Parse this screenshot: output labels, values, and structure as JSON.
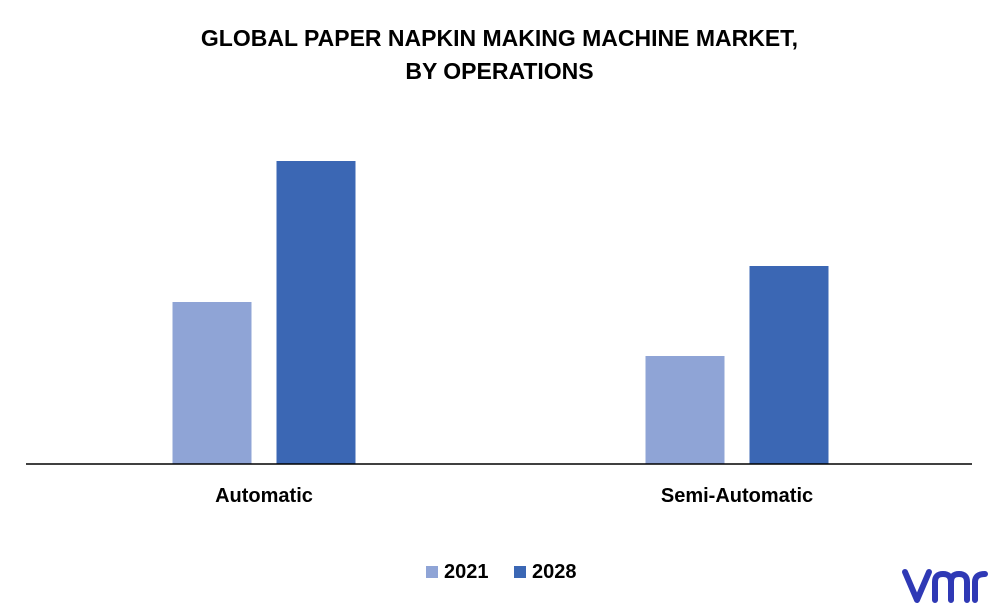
{
  "chart_data": {
    "type": "bar",
    "title_lines": [
      "GLOBAL PAPER NAPKIN MAKING MACHINE MARKET,",
      "BY OPERATIONS"
    ],
    "categories": [
      "Automatic",
      "Semi-Automatic"
    ],
    "series": [
      {
        "name": "2021",
        "values": [
          5.4,
          3.6
        ],
        "color": "#8FA4D6"
      },
      {
        "name": "2028",
        "values": [
          10.1,
          6.6
        ],
        "color": "#3B67B4"
      }
    ],
    "ylim": [
      0,
      11
    ],
    "grid": false,
    "legend_position": "bottom-center",
    "xlabel": "",
    "ylabel": ""
  },
  "brand": {
    "logo_icon": "vmr-logo-icon",
    "logo_color": "#2F39B5"
  }
}
